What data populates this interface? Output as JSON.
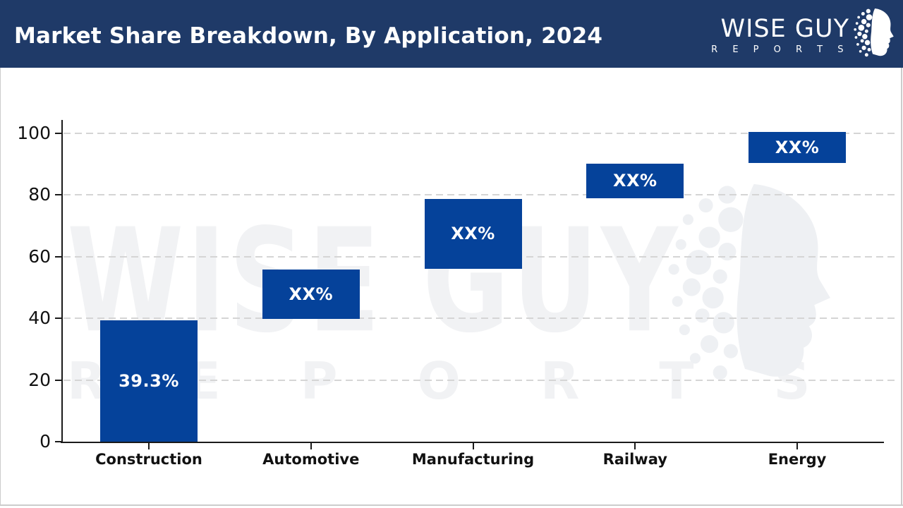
{
  "header": {
    "title": "Market Share Breakdown, By Application, 2024",
    "bg_color": "#1f3a68",
    "logo": {
      "line1": "WISE GUY",
      "line2": "R E P O R T S"
    }
  },
  "watermark": {
    "line1": "WISE GUY",
    "line2": "R E P O R T S"
  },
  "chart_data": {
    "type": "bar",
    "subtype": "waterfall",
    "title": "Market Share Breakdown, By Application, 2024",
    "xlabel": "",
    "ylabel": "",
    "categories": [
      "Construction",
      "Automotive",
      "Manufacturing",
      "Railway",
      "Energy"
    ],
    "segments": [
      {
        "category": "Construction",
        "start": 0,
        "end": 39.3,
        "value_label": "39.3%"
      },
      {
        "category": "Automotive",
        "start": 39.8,
        "end": 55.8,
        "value_label": "XX%"
      },
      {
        "category": "Manufacturing",
        "start": 56.0,
        "end": 78.7,
        "value_label": "XX%"
      },
      {
        "category": "Railway",
        "start": 78.9,
        "end": 90.1,
        "value_label": "XX%"
      },
      {
        "category": "Energy",
        "start": 90.3,
        "end": 100.4,
        "value_label": "XX%"
      }
    ],
    "yticks": [
      "0",
      "20",
      "40",
      "60",
      "80",
      "100"
    ],
    "ylim": [
      0,
      104
    ],
    "bar_color": "#05429a",
    "grid": "horizontal-dashed",
    "legend": "none"
  }
}
